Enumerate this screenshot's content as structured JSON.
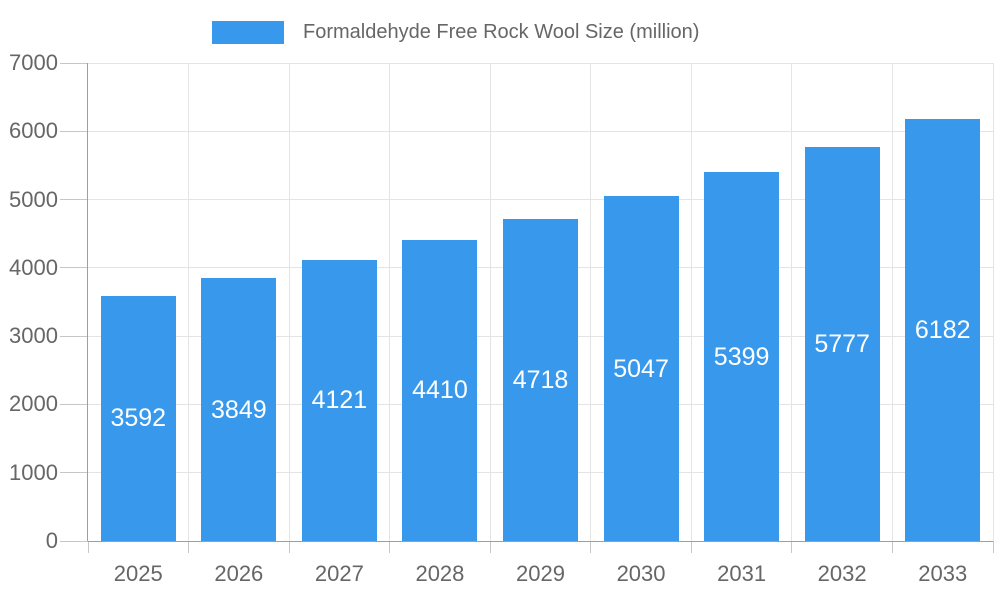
{
  "chart_data": {
    "type": "bar",
    "legend_label": "Formaldehyde Free Rock Wool Size (million)",
    "categories": [
      "2025",
      "2026",
      "2027",
      "2028",
      "2029",
      "2030",
      "2031",
      "2032",
      "2033"
    ],
    "series": [
      {
        "name": "Formaldehyde Free Rock Wool Size (million)",
        "values": [
          3592,
          3849,
          4121,
          4410,
          4718,
          5047,
          5399,
          5777,
          6182
        ]
      }
    ],
    "values": [
      3592,
      3849,
      4121,
      4410,
      4718,
      5047,
      5399,
      5777,
      6182
    ],
    "bar_labels": [
      "3592",
      "3849",
      "4121",
      "4410",
      "4718",
      "5047",
      "5399",
      "5777",
      "6182"
    ],
    "ylim": [
      0,
      7000
    ],
    "yticks": [
      0,
      1000,
      2000,
      3000,
      4000,
      5000,
      6000,
      7000
    ],
    "ytick_labels": [
      "0",
      "1000",
      "2000",
      "3000",
      "4000",
      "5000",
      "6000",
      "7000"
    ],
    "grid": "on",
    "legend_position": "top-center",
    "colors": {
      "bar": "#3899EC",
      "bar_label": "#FFFFFF",
      "grid": "#E4E4E4",
      "axis": "#9E9E9E",
      "tick": "#C6C6C6",
      "text": "#666666"
    }
  }
}
